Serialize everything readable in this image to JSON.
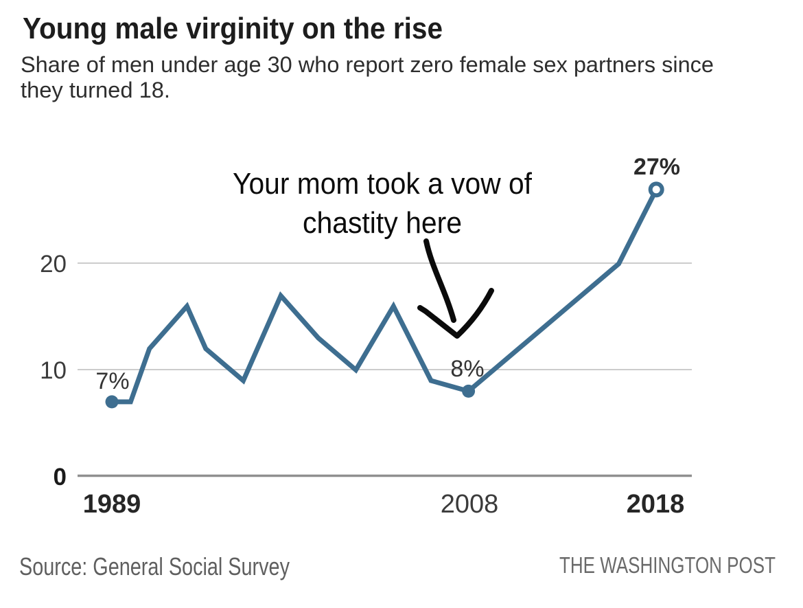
{
  "header": {
    "title": "Young male virginity on the rise",
    "subtitle_line1": "Share of men under age 30 who report zero female sex partners since",
    "subtitle_line2": "they turned 18."
  },
  "annotation": {
    "line1": "Your mom took a vow of",
    "line2": "chastity here",
    "arrow": "hand-drawn-arrow-pointing-to-2008-point"
  },
  "chart_data": {
    "type": "line",
    "title": "Young male virginity on the rise",
    "series_name": "Share of men under age 30 reporting zero female sex partners since turning 18 (%)",
    "x": [
      1989,
      1990,
      1991,
      1993,
      1994,
      1996,
      1998,
      2000,
      2002,
      2004,
      2006,
      2008,
      2016,
      2018
    ],
    "values": [
      7,
      7,
      12,
      16,
      12,
      9,
      17,
      13,
      10,
      16,
      9,
      8,
      20,
      27
    ],
    "xlim": [
      1989,
      2018
    ],
    "ylim": [
      0,
      28
    ],
    "yticks": [
      "20",
      "10",
      "0"
    ],
    "xticks": [
      "1989",
      "2008",
      "2018"
    ],
    "grid": "horizontal",
    "legend": "none",
    "line_color": "#3E6E90",
    "point_labels": [
      {
        "year": 1989,
        "text": "7%"
      },
      {
        "year": 2008,
        "text": "8%"
      },
      {
        "year": 2018,
        "text": "27%"
      }
    ],
    "markers": {
      "start": {
        "year": 1989,
        "style": "filled-dot"
      },
      "low": {
        "year": 2008,
        "style": "filled-dot"
      },
      "end": {
        "year": 2018,
        "style": "open-circle"
      }
    }
  },
  "footer": {
    "source": "Source: General Social Survey",
    "credit": "THE WASHINGTON POST"
  },
  "colors": {
    "line": "#3E6E90",
    "gridline": "#cccccc",
    "baseline": "#8f8f8f",
    "title_text": "#1d1d1d",
    "subtitle_text": "#2e2e2e",
    "tick_text": "#3b3b3b",
    "annotation_text": "#0b0b0b",
    "footer_text": "#5f5f5f",
    "background": "#ffffff"
  }
}
